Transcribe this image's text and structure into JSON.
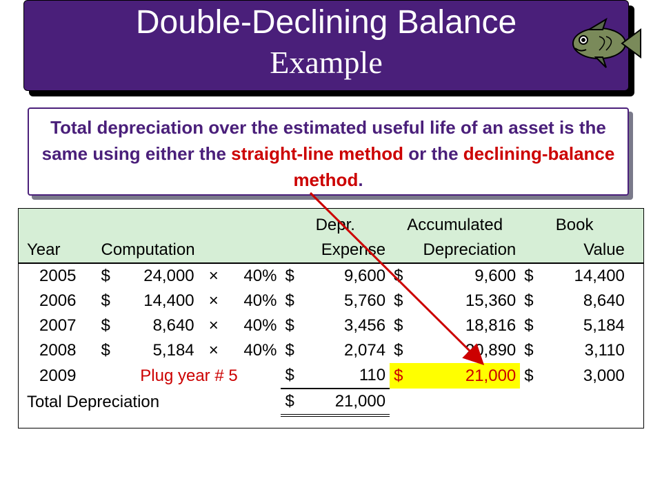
{
  "title": {
    "line1": "Double-Declining Balance",
    "line2": "Example",
    "bg_color": "#4a1f7a",
    "text_color": "#ffffff",
    "line1_fontsize": 48,
    "line2_fontsize": 46
  },
  "note": {
    "pre": "Total depreciation over the estimated useful life of an asset is the same using either the ",
    "hl1": "straight-line method",
    "mid": " or the ",
    "hl2": "declining-balance method",
    "post": ".",
    "text_color": "#4a1f7a",
    "highlight_color": "#cc0000",
    "border_color": "#4a1f7a",
    "fontsize": 26
  },
  "table": {
    "header_bg": "#d6eed6",
    "highlight_bg": "#ffff00",
    "red_text": "#cc0000",
    "columns": {
      "year": "Year",
      "computation": "Computation",
      "depr_expense_top": "Depr.",
      "depr_expense_bot": "Expense",
      "accum_top": "Accumulated",
      "accum_bot": "Depreciation",
      "book_top": "Book",
      "book_bot": "Value"
    },
    "rows": [
      {
        "year": "2005",
        "comp_sym": "$",
        "comp_val": "24,000",
        "comp_op": "×",
        "comp_pct": "40%",
        "exp_sym": "$",
        "exp_val": "9,600",
        "acc_sym": "$",
        "acc_val": "9,600",
        "bv_sym": "$",
        "bv_val": "14,400"
      },
      {
        "year": "2006",
        "comp_sym": "$",
        "comp_val": "14,400",
        "comp_op": "×",
        "comp_pct": "40%",
        "exp_sym": "$",
        "exp_val": "5,760",
        "acc_sym": "$",
        "acc_val": "15,360",
        "bv_sym": "$",
        "bv_val": "8,640"
      },
      {
        "year": "2007",
        "comp_sym": "$",
        "comp_val": "8,640",
        "comp_op": "×",
        "comp_pct": "40%",
        "exp_sym": "$",
        "exp_val": "3,456",
        "acc_sym": "$",
        "acc_val": "18,816",
        "bv_sym": "$",
        "bv_val": "5,184"
      },
      {
        "year": "2008",
        "comp_sym": "$",
        "comp_val": "5,184",
        "comp_op": "×",
        "comp_pct": "40%",
        "exp_sym": "$",
        "exp_val": "2,074",
        "acc_sym": "$",
        "acc_val": "20,890",
        "bv_sym": "$",
        "bv_val": "3,110"
      }
    ],
    "plug_row": {
      "year": "2009",
      "comp_text": "Plug year # 5",
      "exp_sym": "$",
      "exp_val": "110",
      "acc_sym": "$",
      "acc_val": "21,000",
      "bv_sym": "$",
      "bv_val": "3,000"
    },
    "total_row": {
      "label": "Total Depreciation",
      "exp_sym": "$",
      "exp_val": "21,000"
    }
  },
  "arrow": {
    "color": "#cc0000",
    "stroke_width": 3
  },
  "icons": {
    "fish": "fish-icon"
  }
}
